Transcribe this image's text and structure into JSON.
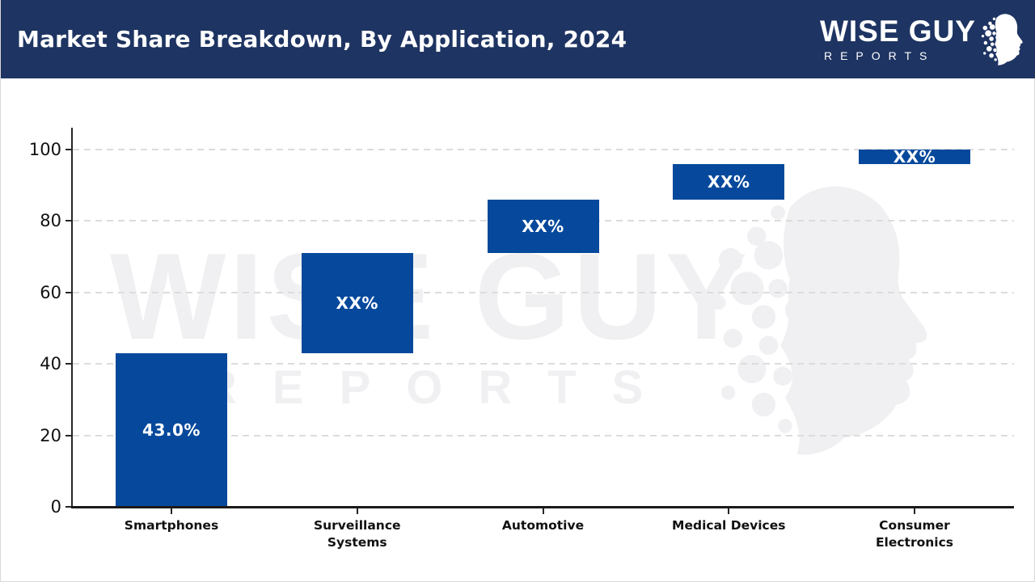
{
  "header": {
    "title": "Market Share Breakdown, By Application, 2024",
    "logo": {
      "line1": "WISE GUY",
      "line2": "REPORTS"
    }
  },
  "watermark": {
    "line1": "WISE GUY",
    "line2": "REPORTS"
  },
  "colors": {
    "header_bg": "#1e3462",
    "bar": "#06499c",
    "grid": "#dcdcdc",
    "axis": "#1a1a1a",
    "bar_label": "#ffffff",
    "watermark": "#f0f0f2"
  },
  "chart_data": {
    "type": "bar",
    "subtype": "waterfall",
    "title": "Market Share Breakdown, By Application, 2024",
    "categories": [
      "Smartphones",
      "Surveillance\nSystems",
      "Automotive",
      "Medical Devices",
      "Consumer\nElectronics"
    ],
    "segments": [
      {
        "category": "Smartphones",
        "start": 0,
        "end": 43,
        "label": "43.0%"
      },
      {
        "category": "Surveillance Systems",
        "start": 43,
        "end": 71,
        "label": "XX%"
      },
      {
        "category": "Automotive",
        "start": 71,
        "end": 86,
        "label": "XX%"
      },
      {
        "category": "Medical Devices",
        "start": 86,
        "end": 96,
        "label": "XX%"
      },
      {
        "category": "Consumer Electronics",
        "start": 96,
        "end": 100,
        "label": "XX%"
      }
    ],
    "xlabel": "",
    "ylabel": "",
    "ylim": [
      0,
      100
    ],
    "yticks": [
      0,
      20,
      40,
      60,
      80,
      100
    ],
    "grid": "horizontal-dashed",
    "legend": "none"
  }
}
